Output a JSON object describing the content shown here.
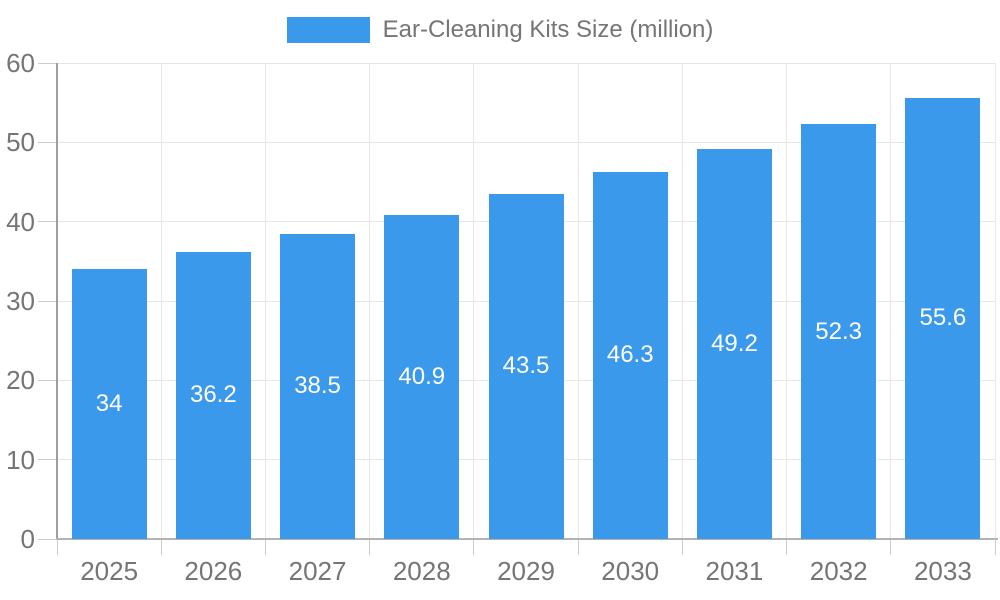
{
  "legend": {
    "label": "Ear-Cleaning Kits Size (million)"
  },
  "chart_data": {
    "type": "bar",
    "title": "Ear-Cleaning Kits Size (million)",
    "categories": [
      "2025",
      "2026",
      "2027",
      "2028",
      "2029",
      "2030",
      "2031",
      "2032",
      "2033"
    ],
    "values": [
      34,
      36.2,
      38.5,
      40.9,
      43.5,
      46.3,
      49.2,
      52.3,
      55.6
    ],
    "xlabel": "",
    "ylabel": "",
    "ylim": [
      0,
      60
    ],
    "ytick_step": 10,
    "yticks": [
      0,
      10,
      20,
      30,
      40,
      50,
      60
    ],
    "grid": true,
    "legend_position": "top",
    "bar_label_color": "#ffffff",
    "colors": {
      "bar": "#3b99ec",
      "axis_text": "#757575",
      "grid_line": "#e6e6e6",
      "axis_line": "#a8a8a8",
      "tick": "#cccccc"
    }
  }
}
